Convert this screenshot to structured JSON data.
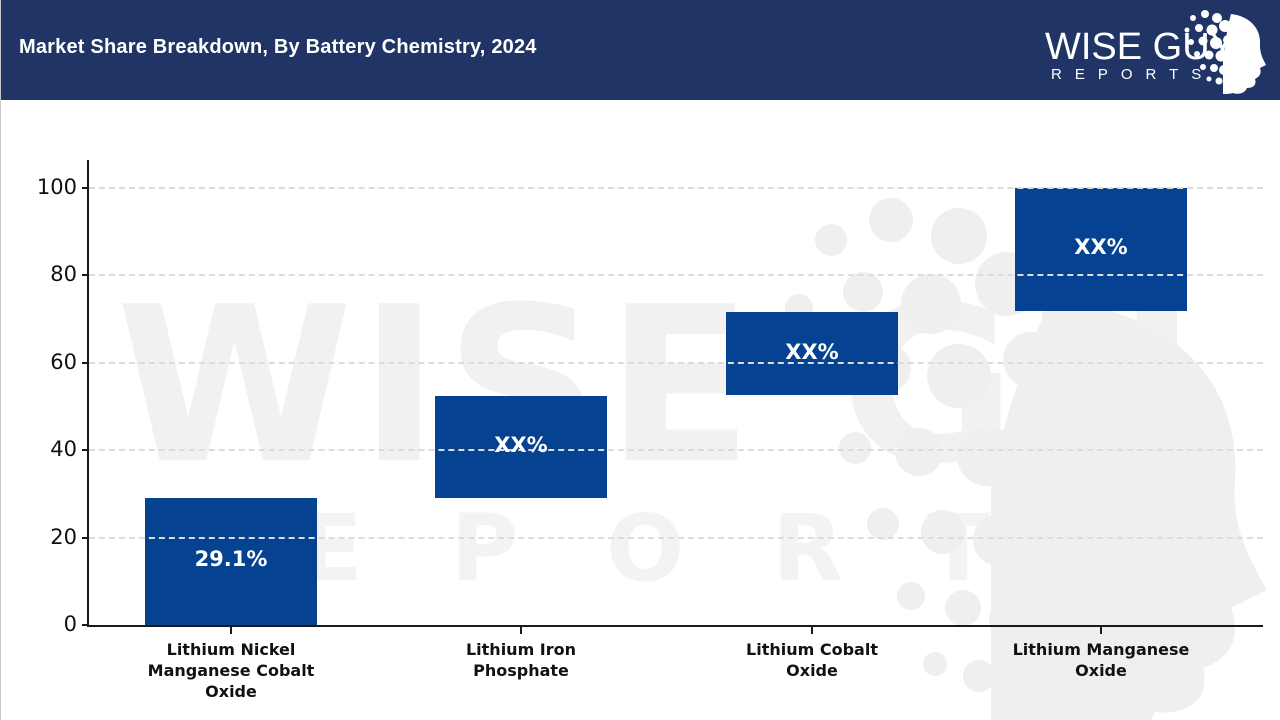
{
  "header": {
    "title": "Market Share Breakdown, By Battery Chemistry, 2024",
    "logo": {
      "name": "WISE GUY",
      "sub": "REPORTS"
    }
  },
  "watermark": {
    "line1": "WISE GU",
    "line2": "REPORTS"
  },
  "chart_data": {
    "type": "bar",
    "subtype": "waterfall",
    "title": "Market Share Breakdown, By Battery Chemistry, 2024",
    "categories": [
      "Lithium Nickel Manganese Cobalt Oxide",
      "Lithium Iron Phosphate",
      "Lithium Cobalt Oxide",
      "Lithium Manganese Oxide"
    ],
    "category_lines": [
      "Lithium Nickel\nManganese Cobalt\nOxide",
      "Lithium Iron\nPhosphate",
      "Lithium Cobalt\nOxide",
      "Lithium Manganese\nOxide"
    ],
    "segments": [
      {
        "start": 0,
        "end": 29.1,
        "label": "29.1%"
      },
      {
        "start": 29.1,
        "end": 52.4,
        "label": "XX%"
      },
      {
        "start": 52.6,
        "end": 71.5,
        "label": "XX%"
      },
      {
        "start": 71.8,
        "end": 100,
        "label": "XX%"
      }
    ],
    "yticks": [
      0,
      20,
      40,
      60,
      80,
      100
    ],
    "ylim": [
      0,
      105
    ],
    "xlabel": "",
    "ylabel": "",
    "grid": "horizontal-dashed",
    "legend": "none",
    "bar_color": "#054291",
    "bar_label_color": "#ffffff"
  }
}
